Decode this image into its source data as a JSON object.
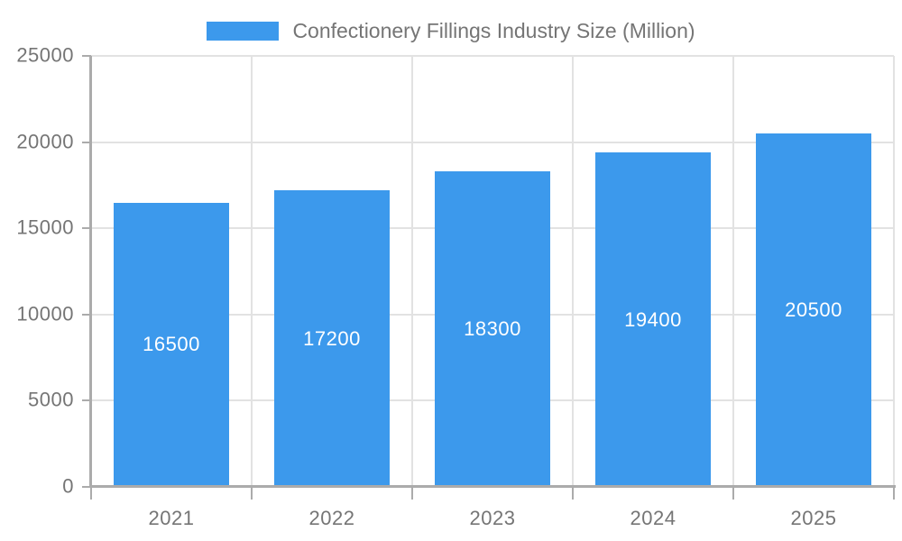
{
  "legend": {
    "label": "Confectionery Fillings Industry Size (Million)"
  },
  "chart_data": {
    "type": "bar",
    "title": "Confectionery Fillings Industry Size (Million)",
    "categories": [
      "2021",
      "2022",
      "2023",
      "2024",
      "2025"
    ],
    "values": [
      16500,
      17200,
      18300,
      19400,
      20500
    ],
    "bar_labels": [
      "16500",
      "17200",
      "18300",
      "19400",
      "20500"
    ],
    "xlabel": "",
    "ylabel": "",
    "ylim": [
      0,
      25000
    ],
    "ytick_step": 5000,
    "ytick_labels": [
      "0",
      "5000",
      "10000",
      "15000",
      "20000",
      "25000"
    ],
    "grid": true,
    "legend_position": "top",
    "colors": {
      "bar": "#3C99EC",
      "grid": "#E2E2E2",
      "axis": "#ABABAB",
      "tick_label": "#757575",
      "legend_text": "#757575",
      "bar_label": "#FFFFFF",
      "background": "#FFFFFF"
    }
  }
}
